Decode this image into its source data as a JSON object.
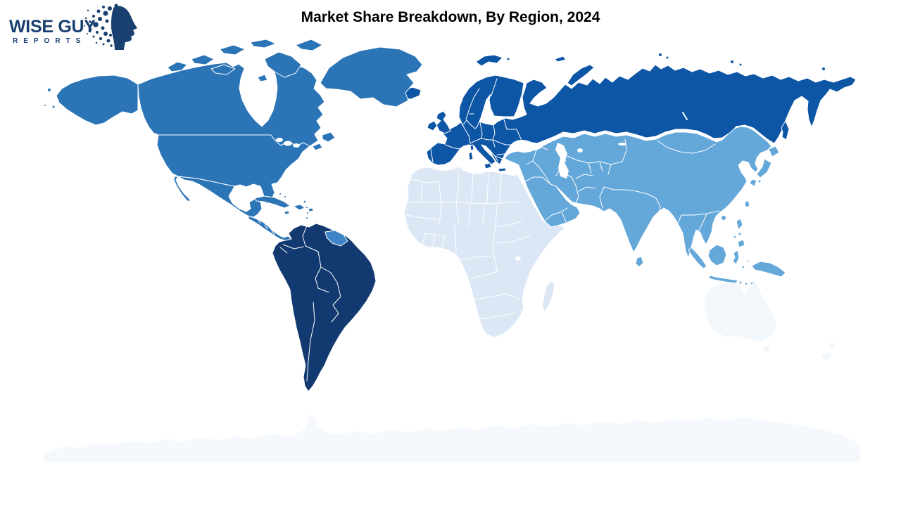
{
  "logo": {
    "brand_line1": "WISE GUY",
    "brand_line2": "REPORTS",
    "brand_color": "#1A4070"
  },
  "title": "Market Share Breakdown, By Region, 2024",
  "chart_data": {
    "type": "choropleth_map",
    "title": "Market Share Breakdown, By Region, 2024",
    "note": "Choropleth world map; no numeric legend or values displayed, regions shaded by relative market share (darker = larger share).",
    "ocean_color": "#FFFFFF",
    "border_color": "#FFFFFF",
    "regions": [
      {
        "id": "south-america",
        "name": "South America",
        "shade_rank": 1,
        "color": "#123A70"
      },
      {
        "id": "europe-russia",
        "name": "Europe & Russia",
        "shade_rank": 2,
        "color": "#0D55A5"
      },
      {
        "id": "north-america",
        "name": "North America",
        "shade_rank": 3,
        "color": "#2B74B6"
      },
      {
        "id": "guianas",
        "name": "Guianas",
        "shade_rank": 4,
        "color": "#3D85C6"
      },
      {
        "id": "asia",
        "name": "Asia & Middle East",
        "shade_rank": 5,
        "color": "#64A7D9"
      },
      {
        "id": "africa",
        "name": "Africa",
        "shade_rank": 6,
        "color": "#DCE7F5"
      },
      {
        "id": "oceania",
        "name": "Oceania",
        "shade_rank": 7,
        "color": "#F2F7FC"
      },
      {
        "id": "antarctica",
        "name": "Antarctica",
        "shade_rank": 7,
        "color": "#F5F9FD"
      }
    ]
  }
}
